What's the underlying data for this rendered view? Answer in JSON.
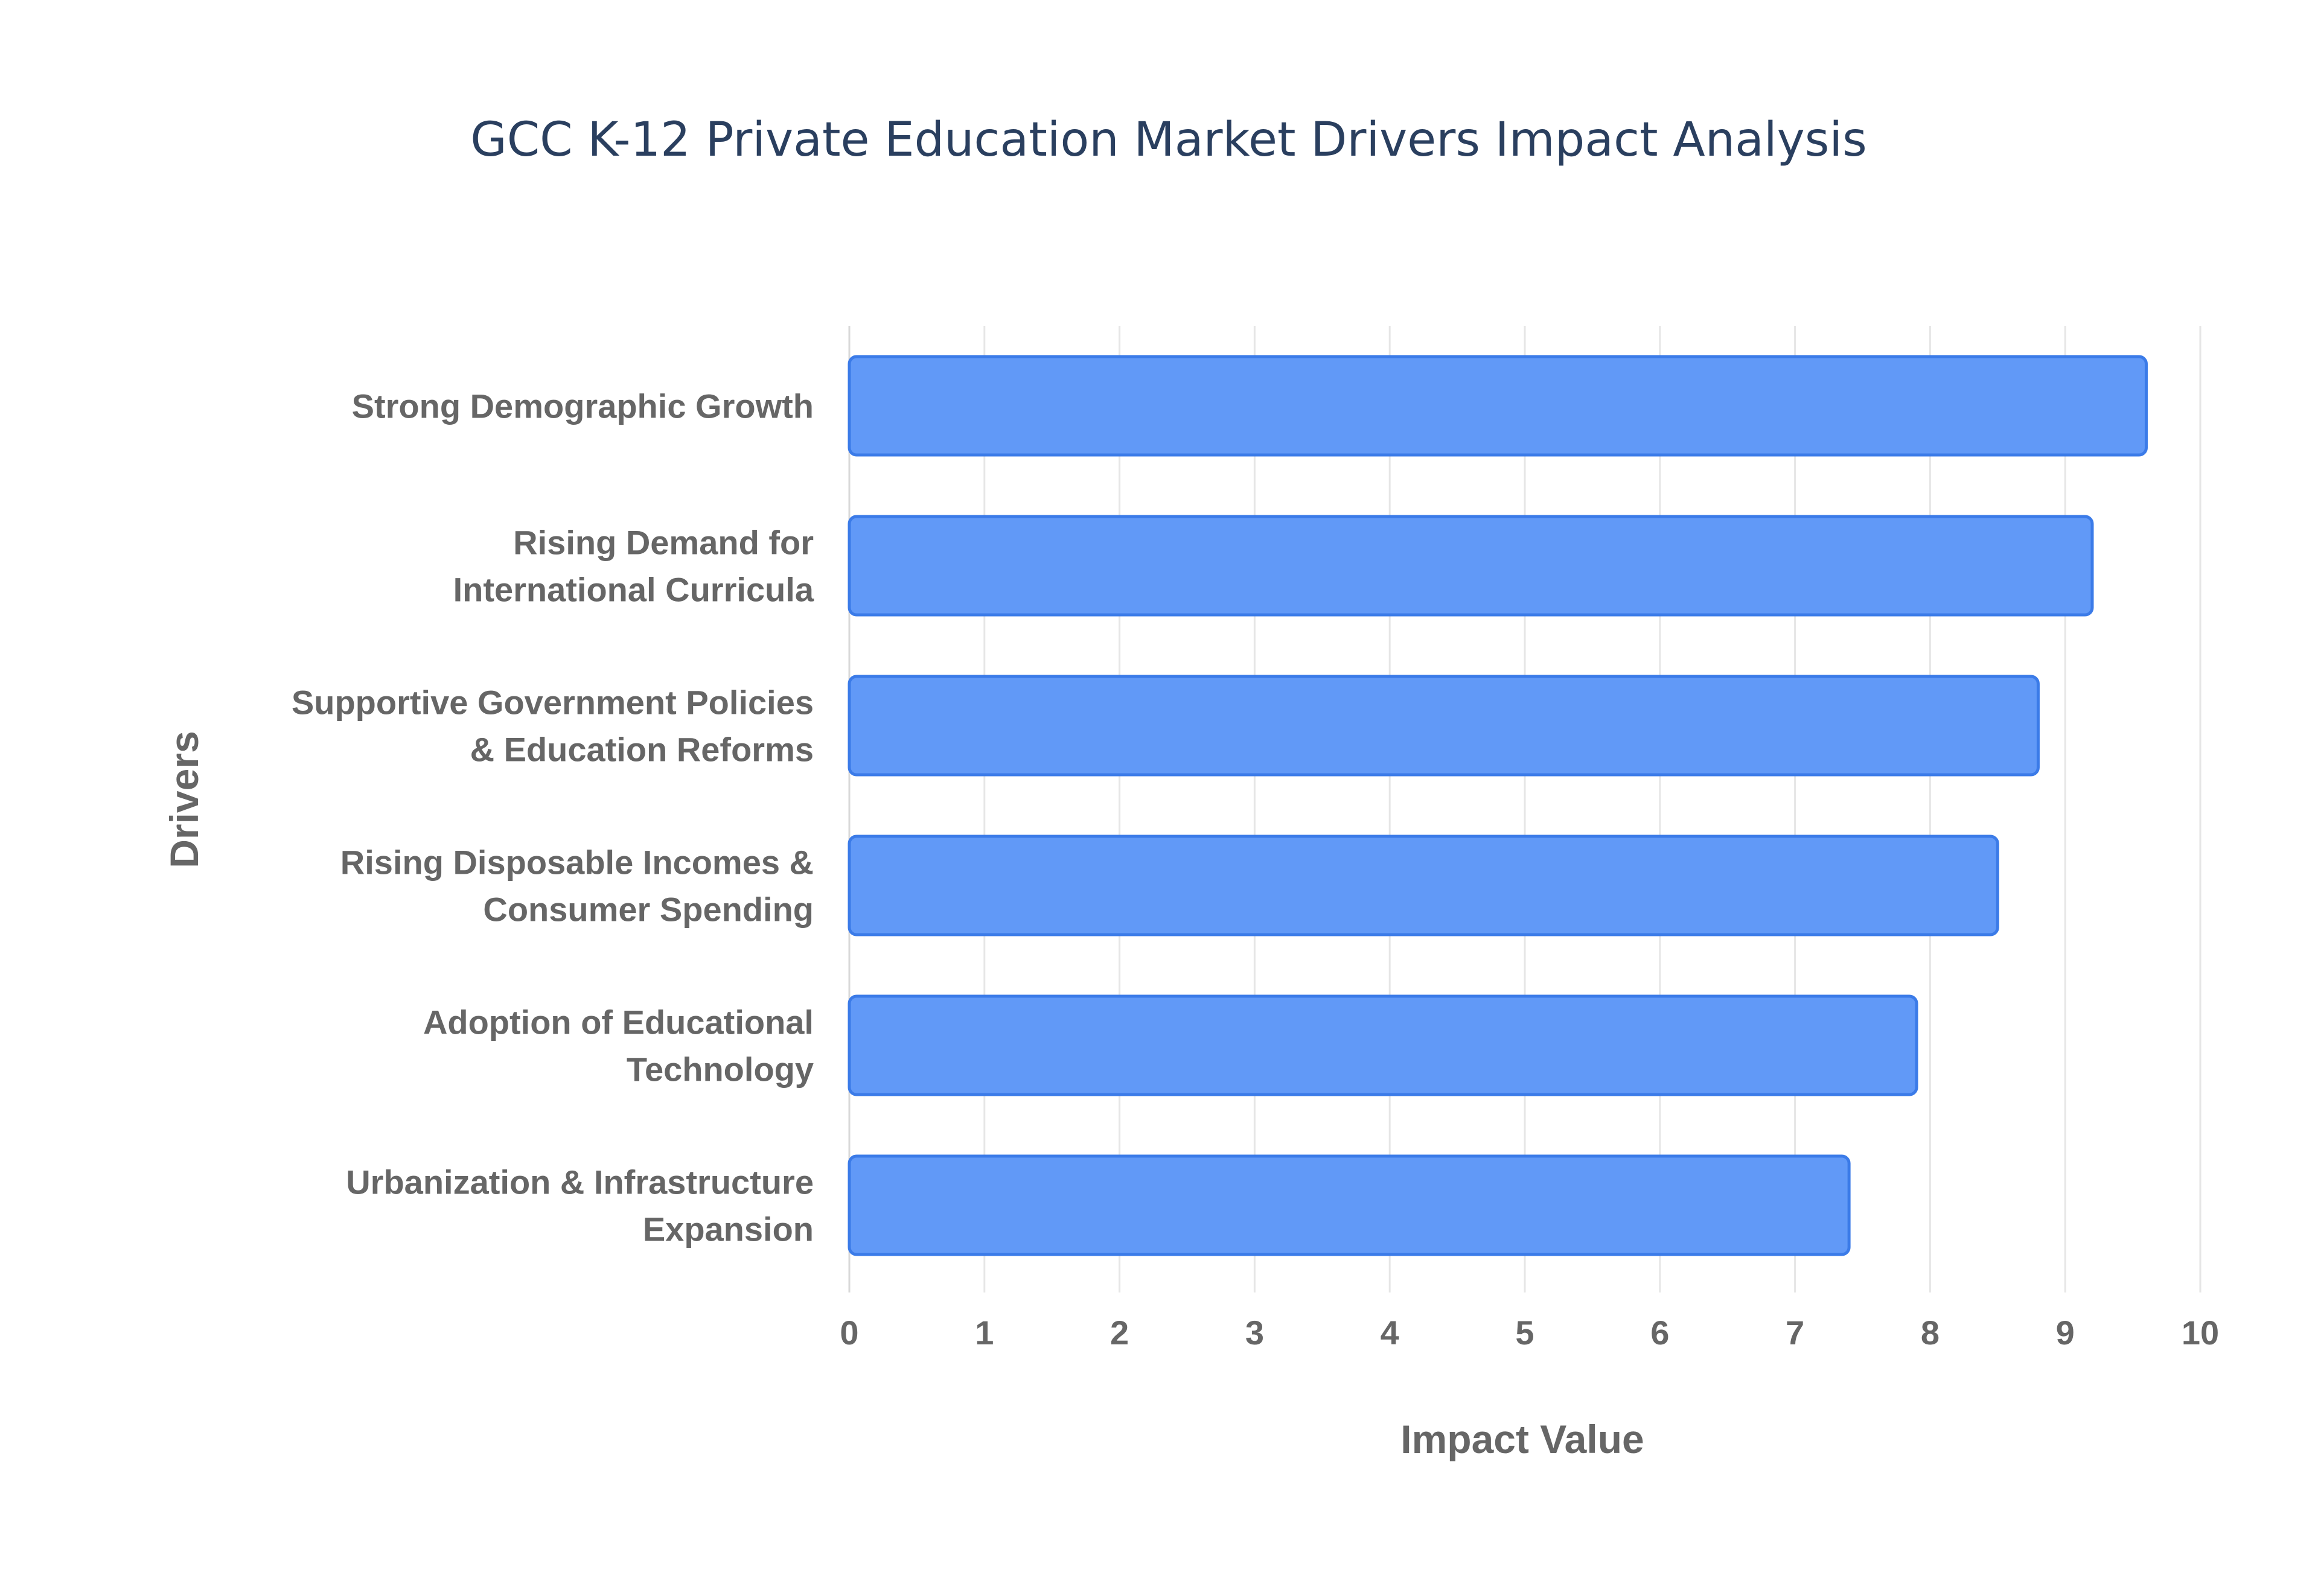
{
  "chart_data": {
    "type": "bar",
    "orientation": "horizontal",
    "title": "GCC K-12 Private Education Market Drivers Impact Analysis",
    "xlabel": "Impact Value",
    "ylabel": "Drivers",
    "xlim": [
      0,
      10
    ],
    "xticks": [
      "0",
      "1",
      "2",
      "3",
      "4",
      "5",
      "6",
      "7",
      "8",
      "9",
      "10"
    ],
    "grid": true,
    "legend": "none",
    "categories": [
      [
        "Strong Demographic Growth"
      ],
      [
        "Rising Demand for",
        "International Curricula"
      ],
      [
        "Supportive Government Policies",
        "& Education Reforms"
      ],
      [
        "Rising Disposable Incomes &",
        "Consumer Spending"
      ],
      [
        "Adoption of Educational",
        "Technology"
      ],
      [
        "Urbanization & Infrastructure",
        "Expansion"
      ]
    ],
    "values": [
      9.6,
      9.2,
      8.8,
      8.5,
      7.9,
      7.4
    ],
    "colors": {
      "bar_fill": "#6199f7",
      "bar_stroke": "#3b7be8",
      "text": "#666666",
      "title": "#2a3f5f",
      "grid": "#e6e6e6"
    }
  }
}
